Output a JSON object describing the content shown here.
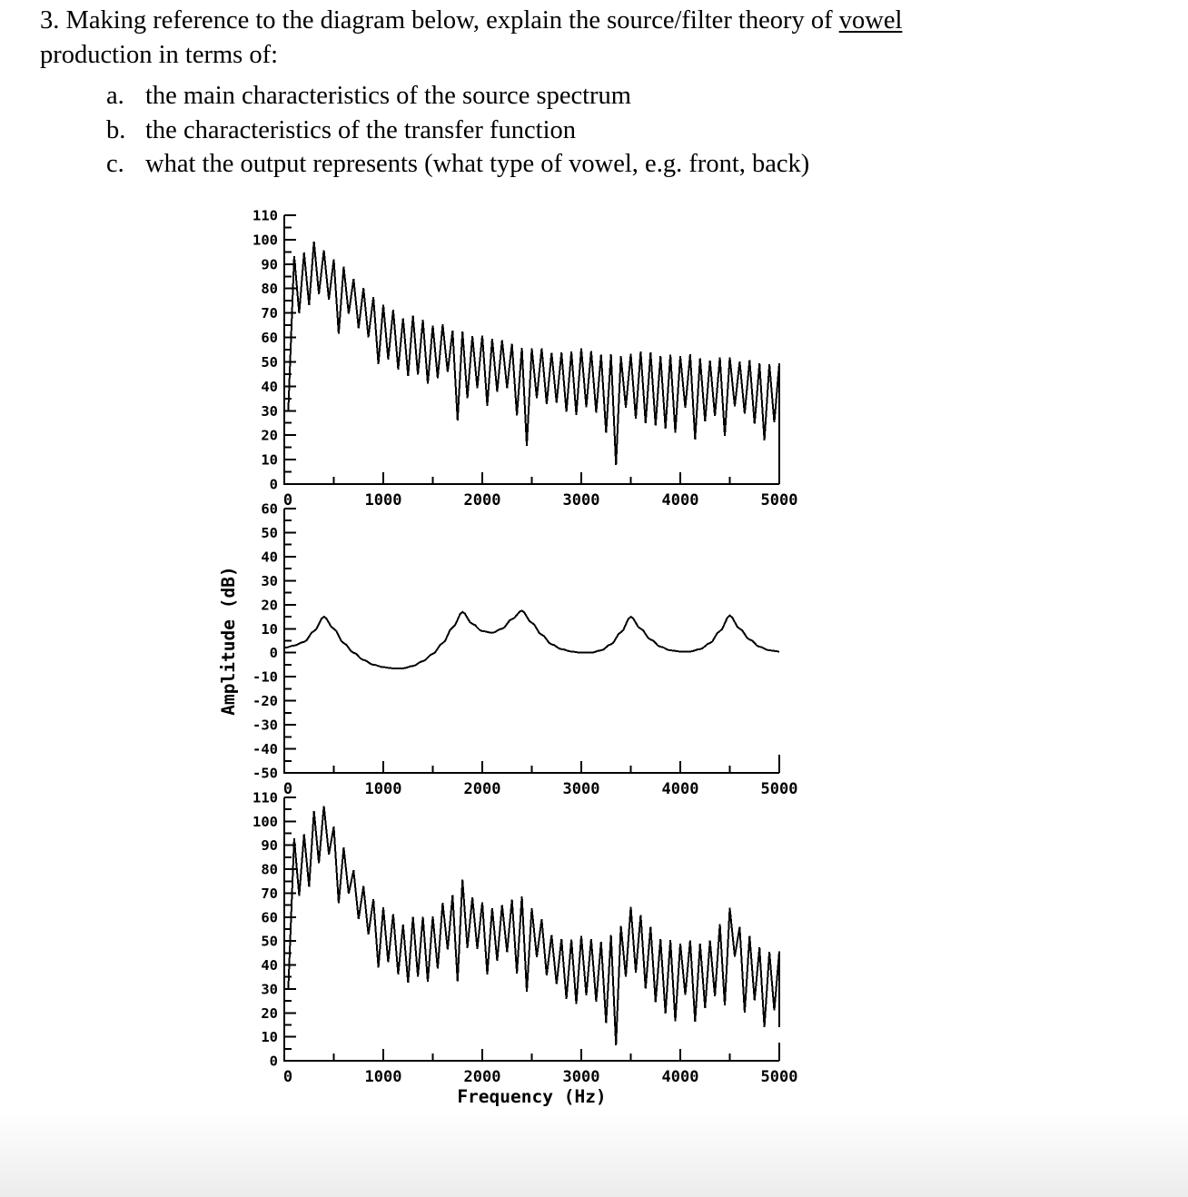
{
  "page": {
    "background": "#ffffff",
    "ink": "#000000"
  },
  "question": {
    "line1_before_underline": "3. Making reference to the diagram below, explain the source/filter theory of ",
    "underlined_word": "vowel",
    "line2": "production in terms of:",
    "items": [
      {
        "label": "a.",
        "text": "the main characteristics of the source spectrum"
      },
      {
        "label": "b.",
        "text": "the characteristics of the transfer function"
      },
      {
        "label": "c.",
        "text": "what the output represents (what type of vowel, e.g. front, back)"
      }
    ]
  },
  "figure": {
    "xlabel": "Frequency (Hz)",
    "ylabel": "Amplitude (dB)",
    "ink": "#000000"
  },
  "chart_data": [
    {
      "name": "source-spectrum",
      "type": "line",
      "title": "",
      "xlabel": "",
      "ylabel": "",
      "xlim": [
        0,
        5000
      ],
      "ylim": [
        0,
        110
      ],
      "x_tick_labels": [
        "0",
        "1000",
        "2000",
        "3000",
        "4000",
        "5000"
      ],
      "x_minor_step_hz": 500,
      "y_tick_labels": [
        "110",
        "100",
        "90",
        "80",
        "70",
        "60",
        "50",
        "40",
        "30",
        "20",
        "10",
        "0"
      ],
      "y_minor_step_db": 5,
      "grid": false,
      "model": {
        "kind": "harmonic_comb",
        "f0_hz": 100,
        "harmonics": 50,
        "start_hz": 40,
        "start_db": 30,
        "envelope_anchors_hz_db": [
          [
            0,
            25
          ],
          [
            50,
            60
          ],
          [
            100,
            92
          ],
          [
            200,
            96
          ],
          [
            300,
            99
          ],
          [
            400,
            96
          ],
          [
            500,
            92
          ],
          [
            700,
            85
          ],
          [
            1000,
            72
          ],
          [
            1250,
            68
          ],
          [
            1500,
            65
          ],
          [
            2000,
            60
          ],
          [
            2500,
            56
          ],
          [
            3000,
            54
          ],
          [
            3500,
            53
          ],
          [
            4000,
            52
          ],
          [
            4500,
            51
          ],
          [
            5000,
            50
          ]
        ],
        "peak_jitter_db": 1.5,
        "valley_depth_db": 26,
        "valley_jitter_db": 7,
        "valley_floor_db": 3,
        "deep_valley_harmonics": [
          17,
          24,
          33,
          41
        ],
        "deep_valley_extra_db": 15,
        "final_drop_to_db": 4,
        "jitter": {
          "sin_mult": 12.9898,
          "scale": 43758.5453
        }
      }
    },
    {
      "name": "transfer-function",
      "type": "line",
      "title": "",
      "xlabel": "",
      "ylabel": "",
      "xlim": [
        0,
        5000
      ],
      "ylim": [
        -50,
        60
      ],
      "x_tick_labels": [
        "0",
        "1000",
        "2000",
        "3000",
        "4000",
        "5000"
      ],
      "x_minor_step_hz": 500,
      "y_tick_labels": [
        "60",
        "50",
        "40",
        "30",
        "20",
        "10",
        "0",
        "-10",
        "-20",
        "-30",
        "-40",
        "-50"
      ],
      "y_minor_step_db": 5,
      "grid": false,
      "model": {
        "kind": "formant_sum",
        "formant_peaks_hz": [
          400,
          1800,
          2400,
          3500,
          4500
        ],
        "formant_peak_db": [
          15,
          17,
          17.5,
          15,
          15.5
        ],
        "f_step_hz": 100,
        "values_db": [
          2,
          3,
          4.5,
          9,
          15,
          10,
          4,
          0,
          -3,
          -5,
          -6,
          -6.5,
          -6.5,
          -5.5,
          -3.5,
          -0.5,
          4,
          10.5,
          17,
          12,
          9,
          8.3,
          10,
          14,
          17.5,
          12.5,
          7.5,
          3.5,
          1.5,
          0.5,
          0,
          0,
          1,
          3.5,
          8.5,
          15,
          10,
          5.5,
          2.5,
          1,
          0.5,
          0.5,
          1.5,
          4,
          9,
          15.5,
          10,
          5.5,
          2.5,
          1,
          0.5
        ]
      }
    },
    {
      "name": "output-spectrum",
      "type": "line",
      "title": "",
      "xlabel": "",
      "ylabel": "",
      "xlim": [
        0,
        5000
      ],
      "ylim": [
        0,
        110
      ],
      "x_tick_labels": [
        "0",
        "1000",
        "2000",
        "3000",
        "4000",
        "5000"
      ],
      "x_minor_step_hz": 500,
      "y_tick_labels": [
        "110",
        "100",
        "90",
        "80",
        "70",
        "60",
        "50",
        "40",
        "30",
        "20",
        "10",
        "0"
      ],
      "y_minor_step_db": 5,
      "grid": false,
      "model": {
        "kind": "filtered_comb",
        "f0_hz": 100,
        "harmonics": 50,
        "start_hz": 40,
        "start_db": 30,
        "envelope_anchors_hz_db": [
          [
            0,
            25
          ],
          [
            50,
            60
          ],
          [
            100,
            92
          ],
          [
            200,
            96
          ],
          [
            300,
            99
          ],
          [
            400,
            96
          ],
          [
            500,
            92
          ],
          [
            700,
            85
          ],
          [
            1000,
            72
          ],
          [
            1250,
            68
          ],
          [
            1500,
            65
          ],
          [
            2000,
            60
          ],
          [
            2500,
            56
          ],
          [
            3000,
            54
          ],
          [
            3500,
            53
          ],
          [
            4000,
            52
          ],
          [
            4500,
            51
          ],
          [
            5000,
            50
          ]
        ],
        "transfer_ref": "transfer-function",
        "output_offset_db": -4,
        "peak_jitter_db": 2.2,
        "valley_depth_db": 27,
        "valley_jitter_db": 8,
        "valley_floor_db": 5,
        "deep_valley_harmonics": [
          17,
          24,
          33,
          41,
          46
        ],
        "deep_valley_extra_db": 14,
        "final_drop_to_db": 14,
        "jitter": {
          "sin_mult": 12.9898,
          "scale": 43758.5453
        }
      }
    }
  ]
}
